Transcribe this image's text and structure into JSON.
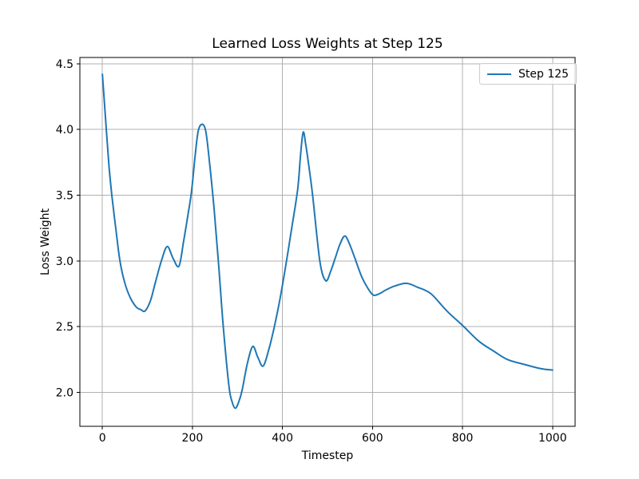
{
  "chart_data": {
    "type": "line",
    "title": "Learned Loss Weights at Step 125",
    "xlabel": "Timestep",
    "ylabel": "Loss Weight",
    "xlim": [
      -50,
      1050
    ],
    "ylim": [
      1.742,
      4.548
    ],
    "grid": true,
    "colors": {
      "line": "#1f77b4",
      "grid": "#b0b0b0",
      "axes": "#000000",
      "legend_border": "#cccccc",
      "background": "#ffffff"
    },
    "xticks": [
      {
        "value": 0,
        "label": "0"
      },
      {
        "value": 200,
        "label": "200"
      },
      {
        "value": 400,
        "label": "400"
      },
      {
        "value": 600,
        "label": "600"
      },
      {
        "value": 800,
        "label": "800"
      },
      {
        "value": 1000,
        "label": "1000"
      }
    ],
    "yticks": [
      {
        "value": 2.0,
        "label": "2.0"
      },
      {
        "value": 2.5,
        "label": "2.5"
      },
      {
        "value": 3.0,
        "label": "3.0"
      },
      {
        "value": 3.5,
        "label": "3.5"
      },
      {
        "value": 4.0,
        "label": "4.0"
      },
      {
        "value": 4.5,
        "label": "4.5"
      }
    ],
    "legend": {
      "position": "upper right",
      "entries": [
        {
          "label": "Step 125",
          "color": "#1f77b4"
        }
      ]
    },
    "series": [
      {
        "name": "Step 125",
        "color": "#1f77b4",
        "points": [
          [
            0,
            4.42
          ],
          [
            5,
            4.18
          ],
          [
            10,
            3.94
          ],
          [
            15,
            3.71
          ],
          [
            21,
            3.5
          ],
          [
            30,
            3.24
          ],
          [
            39,
            3.0
          ],
          [
            50,
            2.83
          ],
          [
            62,
            2.72
          ],
          [
            75,
            2.65
          ],
          [
            85,
            2.63
          ],
          [
            95,
            2.62
          ],
          [
            107,
            2.7
          ],
          [
            118,
            2.84
          ],
          [
            131,
            3.0
          ],
          [
            144,
            3.11
          ],
          [
            157,
            3.02
          ],
          [
            170,
            2.96
          ],
          [
            180,
            3.14
          ],
          [
            190,
            3.35
          ],
          [
            198,
            3.53
          ],
          [
            206,
            3.8
          ],
          [
            213,
            3.99
          ],
          [
            222,
            4.04
          ],
          [
            230,
            3.98
          ],
          [
            238,
            3.75
          ],
          [
            248,
            3.4
          ],
          [
            258,
            2.98
          ],
          [
            269,
            2.48
          ],
          [
            281,
            2.05
          ],
          [
            288,
            1.93
          ],
          [
            295,
            1.88
          ],
          [
            302,
            1.92
          ],
          [
            310,
            2.01
          ],
          [
            322,
            2.22
          ],
          [
            334,
            2.35
          ],
          [
            345,
            2.27
          ],
          [
            357,
            2.2
          ],
          [
            370,
            2.33
          ],
          [
            382,
            2.5
          ],
          [
            395,
            2.72
          ],
          [
            409,
            3.0
          ],
          [
            422,
            3.28
          ],
          [
            434,
            3.55
          ],
          [
            440,
            3.8
          ],
          [
            446,
            3.98
          ],
          [
            452,
            3.88
          ],
          [
            457,
            3.76
          ],
          [
            467,
            3.5
          ],
          [
            483,
            3.0
          ],
          [
            496,
            2.85
          ],
          [
            507,
            2.92
          ],
          [
            517,
            3.02
          ],
          [
            528,
            3.13
          ],
          [
            539,
            3.19
          ],
          [
            550,
            3.12
          ],
          [
            561,
            3.02
          ],
          [
            576,
            2.88
          ],
          [
            590,
            2.79
          ],
          [
            602,
            2.74
          ],
          [
            615,
            2.75
          ],
          [
            630,
            2.78
          ],
          [
            650,
            2.81
          ],
          [
            675,
            2.83
          ],
          [
            700,
            2.8
          ],
          [
            730,
            2.75
          ],
          [
            765,
            2.62
          ],
          [
            800,
            2.51
          ],
          [
            836,
            2.39
          ],
          [
            871,
            2.31
          ],
          [
            900,
            2.25
          ],
          [
            940,
            2.21
          ],
          [
            975,
            2.18
          ],
          [
            1000,
            2.17
          ]
        ]
      }
    ]
  }
}
